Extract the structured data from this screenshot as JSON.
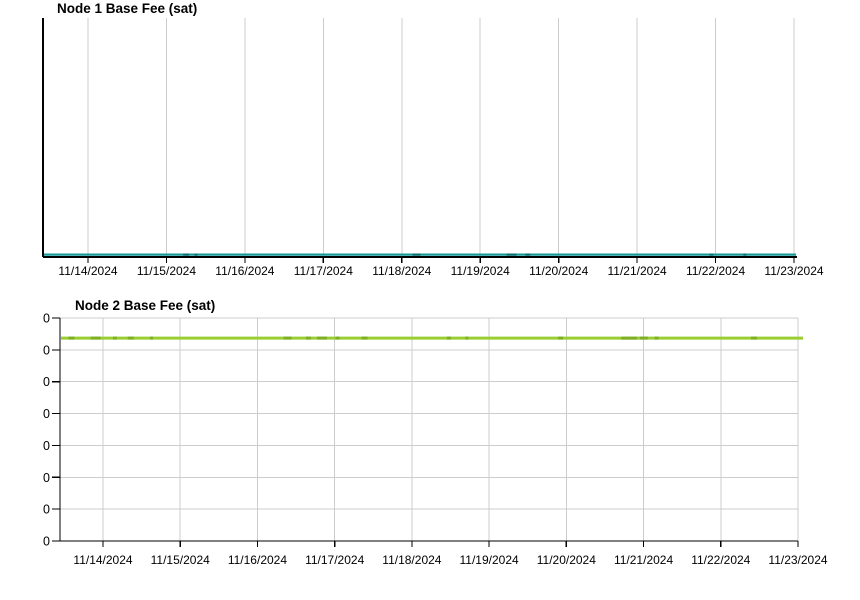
{
  "page": {
    "background": "#ffffff",
    "grid_color": "#cccccc",
    "axis_color": "#000000",
    "text_color": "#000000"
  },
  "chart_data": [
    {
      "type": "line",
      "title": "Node 1 Base Fee (sat)",
      "x": [
        "11/14/2024",
        "11/15/2024",
        "11/16/2024",
        "11/17/2024",
        "11/18/2024",
        "11/19/2024",
        "11/20/2024",
        "11/21/2024",
        "11/22/2024",
        "11/23/2024"
      ],
      "series": [
        {
          "name": "Node 1 Base Fee",
          "color": "#159a9a",
          "marker_color": "#0b6f6f",
          "values": [
            0,
            0,
            0,
            0,
            0,
            0,
            0,
            0,
            0,
            0
          ]
        }
      ],
      "xlabel": "",
      "ylabel": "",
      "y_tick_labels": [],
      "grid": "vertical",
      "legend": "none",
      "layout_hints": {
        "flat_line": true,
        "line_y_fraction": 0.01,
        "note": "constant series drawn directly on top of the bottom x-axis; no y-axis tick labels visible"
      }
    },
    {
      "type": "line",
      "title": "Node 2 Base Fee (sat)",
      "x": [
        "11/14/2024",
        "11/15/2024",
        "11/16/2024",
        "11/17/2024",
        "11/18/2024",
        "11/19/2024",
        "11/20/2024",
        "11/21/2024",
        "11/22/2024",
        "11/23/2024"
      ],
      "series": [
        {
          "name": "Node 2 Base Fee",
          "color": "#9acd32",
          "marker_color": "#7fae27",
          "values": [
            0,
            0,
            0,
            0,
            0,
            0,
            0,
            0,
            0,
            0
          ]
        }
      ],
      "xlabel": "",
      "ylabel": "",
      "y_tick_labels": [
        "0",
        "0",
        "0",
        "0",
        "0",
        "0",
        "0",
        "0"
      ],
      "grid": "both",
      "legend": "none",
      "layout_hints": {
        "flat_line": true,
        "line_y_fraction": 0.91,
        "note": "constant series near the top of the plot; every y-axis tick label renders as 0"
      }
    }
  ]
}
